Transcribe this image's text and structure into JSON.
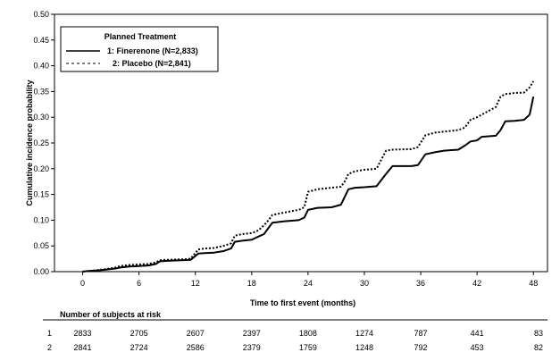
{
  "chart_data": {
    "type": "line",
    "title": "",
    "xlabel": "Time to first event (months)",
    "ylabel": "Cumulative incidence probability",
    "xlim": [
      -3,
      49.5
    ],
    "ylim": [
      0,
      0.5
    ],
    "x_ticks": [
      0,
      6,
      12,
      18,
      24,
      30,
      36,
      42,
      48
    ],
    "y_ticks": [
      "0.00",
      "0.05",
      "0.10",
      "0.15",
      "0.20",
      "0.25",
      "0.30",
      "0.35",
      "0.40",
      "0.45",
      "0.50"
    ],
    "grid": false,
    "legend": {
      "title": "Planned Treatment",
      "position": "top-left",
      "entries": [
        "1: Finerenone (N=2,833)",
        "2: Placebo (N=2,841)"
      ]
    },
    "series": [
      {
        "name": "1: Finerenone (N=2,833)",
        "style": "solid",
        "points": [
          [
            0,
            0
          ],
          [
            0.5,
            0.001
          ],
          [
            1.5,
            0.002
          ],
          [
            2.5,
            0.004
          ],
          [
            3.5,
            0.006
          ],
          [
            4,
            0.008
          ],
          [
            5,
            0.01
          ],
          [
            6,
            0.011
          ],
          [
            7,
            0.012
          ],
          [
            7.8,
            0.015
          ],
          [
            8.2,
            0.02
          ],
          [
            9,
            0.021
          ],
          [
            10.5,
            0.022
          ],
          [
            11.5,
            0.023
          ],
          [
            12.3,
            0.035
          ],
          [
            13,
            0.036
          ],
          [
            14,
            0.037
          ],
          [
            15,
            0.04
          ],
          [
            15.8,
            0.045
          ],
          [
            16.2,
            0.058
          ],
          [
            17,
            0.06
          ],
          [
            18,
            0.062
          ],
          [
            18.7,
            0.068
          ],
          [
            19.3,
            0.073
          ],
          [
            19.8,
            0.085
          ],
          [
            20.2,
            0.095
          ],
          [
            21.5,
            0.098
          ],
          [
            23,
            0.1
          ],
          [
            23.6,
            0.105
          ],
          [
            24,
            0.12
          ],
          [
            25,
            0.124
          ],
          [
            26.5,
            0.125
          ],
          [
            27.5,
            0.13
          ],
          [
            27.9,
            0.145
          ],
          [
            28.3,
            0.16
          ],
          [
            29,
            0.163
          ],
          [
            30,
            0.164
          ],
          [
            31.3,
            0.166
          ],
          [
            32.3,
            0.19
          ],
          [
            33,
            0.205
          ],
          [
            35,
            0.205
          ],
          [
            35.7,
            0.207
          ],
          [
            36.5,
            0.228
          ],
          [
            37.5,
            0.232
          ],
          [
            38.5,
            0.235
          ],
          [
            40,
            0.237
          ],
          [
            40.7,
            0.245
          ],
          [
            41.3,
            0.253
          ],
          [
            42,
            0.255
          ],
          [
            42.5,
            0.262
          ],
          [
            44,
            0.264
          ],
          [
            44.5,
            0.275
          ],
          [
            45,
            0.292
          ],
          [
            46,
            0.293
          ],
          [
            47,
            0.295
          ],
          [
            47.6,
            0.305
          ],
          [
            48,
            0.34
          ]
        ]
      },
      {
        "name": "2: Placebo (N=2,841)",
        "style": "dotted",
        "points": [
          [
            0,
            0
          ],
          [
            0.5,
            0.001
          ],
          [
            1.5,
            0.003
          ],
          [
            2.5,
            0.005
          ],
          [
            3.5,
            0.008
          ],
          [
            4,
            0.011
          ],
          [
            5,
            0.013
          ],
          [
            6,
            0.014
          ],
          [
            7,
            0.015
          ],
          [
            7.8,
            0.018
          ],
          [
            8.2,
            0.022
          ],
          [
            9,
            0.023
          ],
          [
            10.5,
            0.024
          ],
          [
            11.5,
            0.025
          ],
          [
            12.3,
            0.043
          ],
          [
            13,
            0.045
          ],
          [
            14,
            0.046
          ],
          [
            15,
            0.05
          ],
          [
            15.8,
            0.055
          ],
          [
            16.2,
            0.07
          ],
          [
            17,
            0.073
          ],
          [
            18,
            0.075
          ],
          [
            18.7,
            0.08
          ],
          [
            19.3,
            0.09
          ],
          [
            19.8,
            0.1
          ],
          [
            20.2,
            0.11
          ],
          [
            21.5,
            0.115
          ],
          [
            23,
            0.12
          ],
          [
            23.6,
            0.125
          ],
          [
            24,
            0.155
          ],
          [
            25,
            0.16
          ],
          [
            26.5,
            0.163
          ],
          [
            27.5,
            0.165
          ],
          [
            27.9,
            0.175
          ],
          [
            28.3,
            0.19
          ],
          [
            29,
            0.195
          ],
          [
            30,
            0.198
          ],
          [
            31.3,
            0.2
          ],
          [
            32.3,
            0.235
          ],
          [
            33,
            0.237
          ],
          [
            35,
            0.238
          ],
          [
            35.7,
            0.242
          ],
          [
            36.5,
            0.265
          ],
          [
            37.5,
            0.27
          ],
          [
            38.5,
            0.272
          ],
          [
            40,
            0.275
          ],
          [
            40.7,
            0.28
          ],
          [
            41.3,
            0.295
          ],
          [
            42,
            0.3
          ],
          [
            42.5,
            0.305
          ],
          [
            44,
            0.32
          ],
          [
            44.5,
            0.34
          ],
          [
            45,
            0.345
          ],
          [
            46,
            0.347
          ],
          [
            47,
            0.348
          ],
          [
            47.6,
            0.358
          ],
          [
            48,
            0.37
          ]
        ]
      }
    ],
    "risk_table": {
      "title": "Number of subjects at risk",
      "times": [
        0,
        6,
        12,
        18,
        24,
        30,
        36,
        42,
        48
      ],
      "rows": [
        {
          "label": "1",
          "values": [
            "2833",
            "2705",
            "2607",
            "2397",
            "1808",
            "1274",
            "787",
            "441",
            "83"
          ]
        },
        {
          "label": "2",
          "values": [
            "2841",
            "2724",
            "2586",
            "2379",
            "1759",
            "1248",
            "792",
            "453",
            "82"
          ]
        }
      ]
    }
  }
}
